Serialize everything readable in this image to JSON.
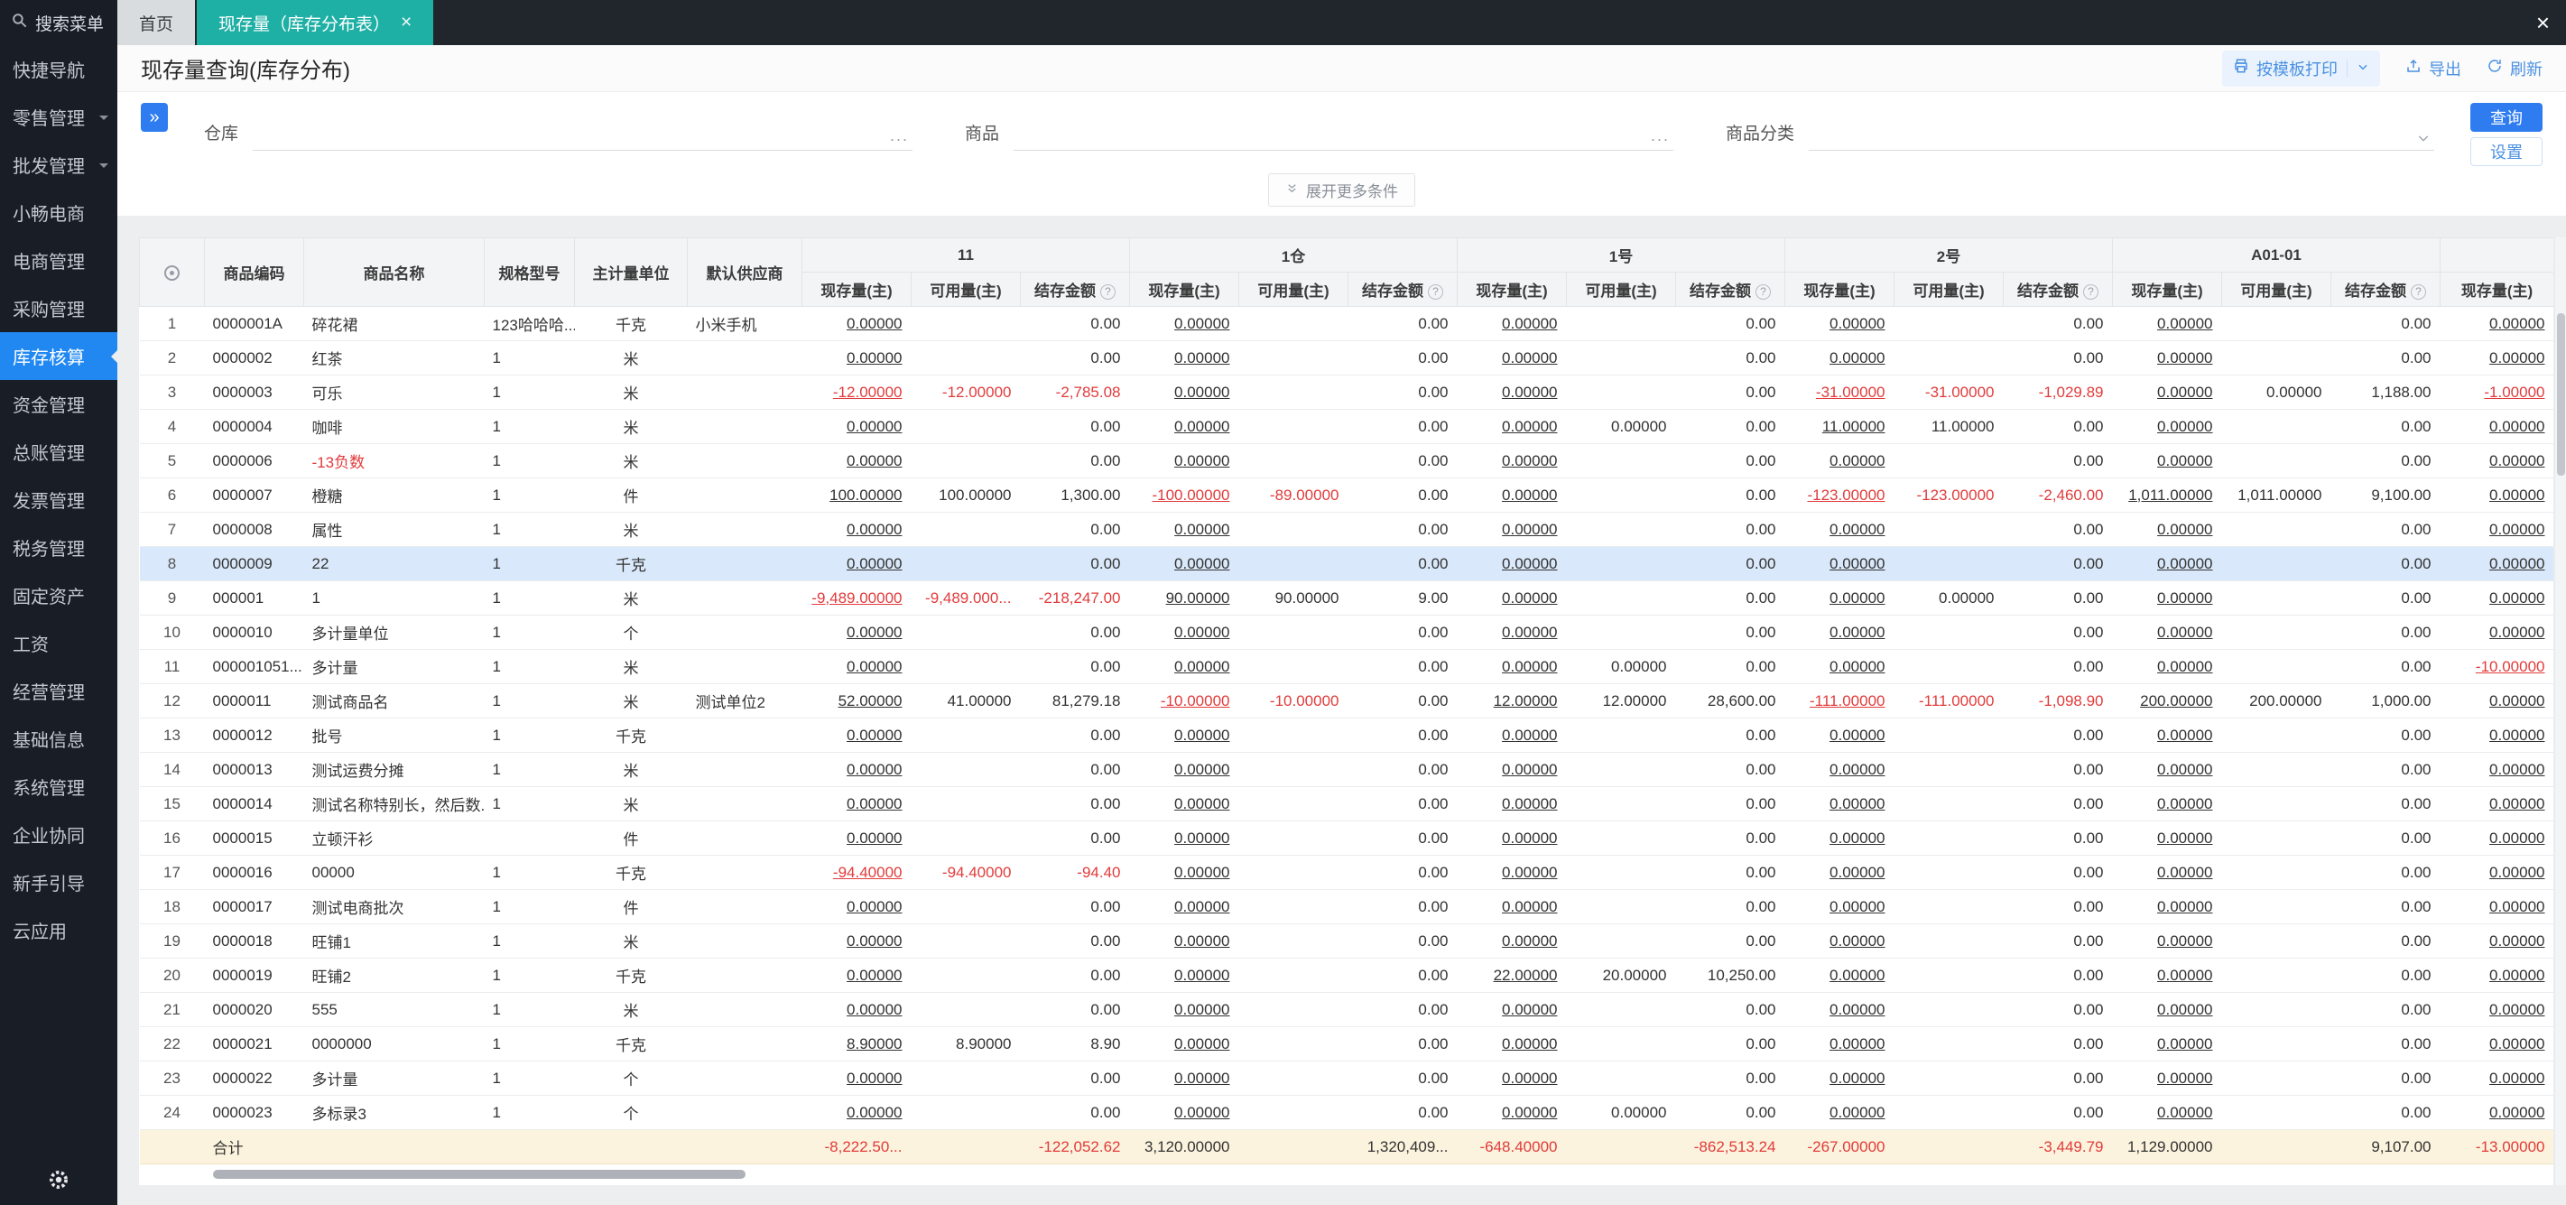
{
  "colors": {
    "sidebar_bg": "#191d26",
    "sidebar_active_blue": "#2188f2",
    "topbar_bg": "#20262c",
    "active_tab_teal": "#1fb0a5",
    "accent_blue": "#2e7cf0",
    "toolbar_link_blue": "#4a90e2",
    "negative_red": "#e23b3b",
    "selected_row_bg": "#d9e8fa",
    "total_row_bg": "#fbf3dd"
  },
  "icons": {
    "sidebar_search": "search-icon",
    "sidebar_expand": "chevron-down-icon",
    "print": "printer-icon",
    "export": "export-icon",
    "refresh": "refresh-icon",
    "table_corner": "target-circle-icon",
    "amount_help": "question-circle-icon",
    "expand_more": "double-chevron-down-icon",
    "gear": "gear-icon",
    "close": "close-icon"
  },
  "sidebar": {
    "search_label": "搜索菜单",
    "items": [
      {
        "label": "快捷导航"
      },
      {
        "label": "零售管理",
        "arrow": true
      },
      {
        "label": "批发管理",
        "arrow": true
      },
      {
        "label": "小畅电商"
      },
      {
        "label": "电商管理"
      },
      {
        "label": "采购管理"
      },
      {
        "label": "库存核算",
        "active": true
      },
      {
        "label": "资金管理"
      },
      {
        "label": "总账管理"
      },
      {
        "label": "发票管理"
      },
      {
        "label": "税务管理"
      },
      {
        "label": "固定资产"
      },
      {
        "label": "工资"
      },
      {
        "label": "经营管理"
      },
      {
        "label": "基础信息"
      },
      {
        "label": "系统管理"
      },
      {
        "label": "企业协同"
      },
      {
        "label": "新手引导"
      },
      {
        "label": "云应用"
      }
    ]
  },
  "topbar": {
    "close_glyph": "×",
    "tabs": [
      {
        "label": "首页",
        "active": false,
        "closable": false
      },
      {
        "label": "现存量（库存分布表）",
        "active": true,
        "closable": true
      }
    ]
  },
  "page": {
    "title": "现存量查询(库存分布)",
    "toolbar": {
      "print": "按模板打印",
      "export": "导出",
      "refresh": "刷新"
    }
  },
  "filters": {
    "expand_button": "»",
    "fields": [
      {
        "label": "仓库",
        "value": "",
        "suffix": "..."
      },
      {
        "label": "商品",
        "value": "",
        "suffix": "..."
      },
      {
        "label": "商品分类",
        "value": "",
        "dropdown": true
      }
    ],
    "query_button": "查询",
    "settings_button": "设置",
    "expand_more": "展开更多条件"
  },
  "table": {
    "help_glyph": "?",
    "fixed_columns": [
      "商品编码",
      "商品名称",
      "规格型号",
      "主计量单位",
      "默认供应商"
    ],
    "warehouse_groups": [
      "11",
      "1仓",
      "1号",
      "2号",
      "A01-01"
    ],
    "sub_columns": [
      "现存量(主)",
      "可用量(主)",
      "结存金额"
    ],
    "overflow_column": "现存量(主)",
    "rows": [
      {
        "num": 1,
        "code": "0000001A",
        "name": "碎花裙",
        "spec": "123哈哈哈...",
        "unit": "千克",
        "supplier": "小米手机",
        "groups": [
          [
            "0.00000",
            "",
            "0.00"
          ],
          [
            "0.00000",
            "",
            "0.00"
          ],
          [
            "0.00000",
            "",
            "0.00"
          ],
          [
            "0.00000",
            "",
            "0.00"
          ],
          [
            "0.00000",
            "",
            "0.00"
          ]
        ],
        "last": "0.00000"
      },
      {
        "num": 2,
        "code": "0000002",
        "name": "红茶",
        "spec": "1",
        "unit": "米",
        "groups": [
          [
            "0.00000",
            "",
            "0.00"
          ],
          [
            "0.00000",
            "",
            "0.00"
          ],
          [
            "0.00000",
            "",
            "0.00"
          ],
          [
            "0.00000",
            "",
            "0.00"
          ],
          [
            "0.00000",
            "",
            "0.00"
          ]
        ],
        "last": "0.00000"
      },
      {
        "num": 3,
        "code": "0000003",
        "name": "可乐",
        "spec": "1",
        "unit": "米",
        "groups": [
          [
            "-12.00000",
            "-12.00000",
            "-2,785.08"
          ],
          [
            "0.00000",
            "",
            "0.00"
          ],
          [
            "0.00000",
            "",
            "0.00"
          ],
          [
            "-31.00000",
            "-31.00000",
            "-1,029.89"
          ],
          [
            "0.00000",
            "0.00000",
            "1,188.00"
          ]
        ],
        "last": "-1.00000"
      },
      {
        "num": 4,
        "code": "0000004",
        "name": "咖啡",
        "spec": "1",
        "unit": "米",
        "groups": [
          [
            "0.00000",
            "",
            "0.00"
          ],
          [
            "0.00000",
            "",
            "0.00"
          ],
          [
            "0.00000",
            "0.00000",
            "0.00"
          ],
          [
            "11.00000",
            "11.00000",
            "0.00"
          ],
          [
            "0.00000",
            "",
            "0.00"
          ]
        ],
        "last": "0.00000"
      },
      {
        "num": 5,
        "code": "0000006",
        "name": "-13负数",
        "name_red": true,
        "spec": "1",
        "unit": "米",
        "groups": [
          [
            "0.00000",
            "",
            "0.00"
          ],
          [
            "0.00000",
            "",
            "0.00"
          ],
          [
            "0.00000",
            "",
            "0.00"
          ],
          [
            "0.00000",
            "",
            "0.00"
          ],
          [
            "0.00000",
            "",
            "0.00"
          ]
        ],
        "last": "0.00000"
      },
      {
        "num": 6,
        "code": "0000007",
        "name": "橙糖",
        "spec": "1",
        "unit": "件",
        "groups": [
          [
            "100.00000",
            "100.00000",
            "1,300.00"
          ],
          [
            "-100.00000",
            "-89.00000",
            "0.00"
          ],
          [
            "0.00000",
            "",
            "0.00"
          ],
          [
            "-123.00000",
            "-123.00000",
            "-2,460.00"
          ],
          [
            "1,011.00000",
            "1,011.00000",
            "9,100.00"
          ]
        ],
        "last": "0.00000"
      },
      {
        "num": 7,
        "code": "0000008",
        "name": "属性",
        "spec": "1",
        "unit": "米",
        "groups": [
          [
            "0.00000",
            "",
            "0.00"
          ],
          [
            "0.00000",
            "",
            "0.00"
          ],
          [
            "0.00000",
            "",
            "0.00"
          ],
          [
            "0.00000",
            "",
            "0.00"
          ],
          [
            "0.00000",
            "",
            "0.00"
          ]
        ],
        "last": "0.00000"
      },
      {
        "num": 8,
        "code": "0000009",
        "name": "22",
        "spec": "1",
        "unit": "千克",
        "selected": true,
        "groups": [
          [
            "0.00000",
            "",
            "0.00"
          ],
          [
            "0.00000",
            "",
            "0.00"
          ],
          [
            "0.00000",
            "",
            "0.00"
          ],
          [
            "0.00000",
            "",
            "0.00"
          ],
          [
            "0.00000",
            "",
            "0.00"
          ]
        ],
        "last": "0.00000"
      },
      {
        "num": 9,
        "code": "000001",
        "name": "1",
        "spec": "1",
        "unit": "米",
        "groups": [
          [
            "-9,489.00000",
            "-9,489.000...",
            "-218,247.00"
          ],
          [
            "90.00000",
            "90.00000",
            "9.00"
          ],
          [
            "0.00000",
            "",
            "0.00"
          ],
          [
            "0.00000",
            "0.00000",
            "0.00"
          ],
          [
            "0.00000",
            "",
            "0.00"
          ]
        ],
        "last": "0.00000"
      },
      {
        "num": 10,
        "code": "0000010",
        "name": "多计量单位",
        "spec": "1",
        "unit": "个",
        "groups": [
          [
            "0.00000",
            "",
            "0.00"
          ],
          [
            "0.00000",
            "",
            "0.00"
          ],
          [
            "0.00000",
            "",
            "0.00"
          ],
          [
            "0.00000",
            "",
            "0.00"
          ],
          [
            "0.00000",
            "",
            "0.00"
          ]
        ],
        "last": "0.00000"
      },
      {
        "num": 11,
        "code": "000001051...",
        "name": "多计量",
        "spec": "1",
        "unit": "米",
        "groups": [
          [
            "0.00000",
            "",
            "0.00"
          ],
          [
            "0.00000",
            "",
            "0.00"
          ],
          [
            "0.00000",
            "0.00000",
            "0.00"
          ],
          [
            "0.00000",
            "",
            "0.00"
          ],
          [
            "0.00000",
            "",
            "0.00"
          ]
        ],
        "last": "-10.00000"
      },
      {
        "num": 12,
        "code": "0000011",
        "name": "测试商品名",
        "spec": "1",
        "unit": "米",
        "supplier": "测试单位2",
        "groups": [
          [
            "52.00000",
            "41.00000",
            "81,279.18"
          ],
          [
            "-10.00000",
            "-10.00000",
            "0.00"
          ],
          [
            "12.00000",
            "12.00000",
            "28,600.00"
          ],
          [
            "-111.00000",
            "-111.00000",
            "-1,098.90"
          ],
          [
            "200.00000",
            "200.00000",
            "1,000.00"
          ]
        ],
        "last": "0.00000"
      },
      {
        "num": 13,
        "code": "0000012",
        "name": "批号",
        "spec": "1",
        "unit": "千克",
        "groups": [
          [
            "0.00000",
            "",
            "0.00"
          ],
          [
            "0.00000",
            "",
            "0.00"
          ],
          [
            "0.00000",
            "",
            "0.00"
          ],
          [
            "0.00000",
            "",
            "0.00"
          ],
          [
            "0.00000",
            "",
            "0.00"
          ]
        ],
        "last": "0.00000"
      },
      {
        "num": 14,
        "code": "0000013",
        "name": "测试运费分摊",
        "spec": "1",
        "unit": "米",
        "groups": [
          [
            "0.00000",
            "",
            "0.00"
          ],
          [
            "0.00000",
            "",
            "0.00"
          ],
          [
            "0.00000",
            "",
            "0.00"
          ],
          [
            "0.00000",
            "",
            "0.00"
          ],
          [
            "0.00000",
            "",
            "0.00"
          ]
        ],
        "last": "0.00000"
      },
      {
        "num": 15,
        "code": "0000014",
        "name": "测试名称特别长，然后数...",
        "spec": "1",
        "unit": "米",
        "groups": [
          [
            "0.00000",
            "",
            "0.00"
          ],
          [
            "0.00000",
            "",
            "0.00"
          ],
          [
            "0.00000",
            "",
            "0.00"
          ],
          [
            "0.00000",
            "",
            "0.00"
          ],
          [
            "0.00000",
            "",
            "0.00"
          ]
        ],
        "last": "0.00000"
      },
      {
        "num": 16,
        "code": "0000015",
        "name": "立顿汗衫",
        "spec": "",
        "unit": "件",
        "groups": [
          [
            "0.00000",
            "",
            "0.00"
          ],
          [
            "0.00000",
            "",
            "0.00"
          ],
          [
            "0.00000",
            "",
            "0.00"
          ],
          [
            "0.00000",
            "",
            "0.00"
          ],
          [
            "0.00000",
            "",
            "0.00"
          ]
        ],
        "last": "0.00000"
      },
      {
        "num": 17,
        "code": "0000016",
        "name": "00000",
        "spec": "1",
        "unit": "千克",
        "groups": [
          [
            "-94.40000",
            "-94.40000",
            "-94.40"
          ],
          [
            "0.00000",
            "",
            "0.00"
          ],
          [
            "0.00000",
            "",
            "0.00"
          ],
          [
            "0.00000",
            "",
            "0.00"
          ],
          [
            "0.00000",
            "",
            "0.00"
          ]
        ],
        "last": "0.00000"
      },
      {
        "num": 18,
        "code": "0000017",
        "name": "测试电商批次",
        "spec": "1",
        "unit": "件",
        "groups": [
          [
            "0.00000",
            "",
            "0.00"
          ],
          [
            "0.00000",
            "",
            "0.00"
          ],
          [
            "0.00000",
            "",
            "0.00"
          ],
          [
            "0.00000",
            "",
            "0.00"
          ],
          [
            "0.00000",
            "",
            "0.00"
          ]
        ],
        "last": "0.00000"
      },
      {
        "num": 19,
        "code": "0000018",
        "name": "旺铺1",
        "spec": "1",
        "unit": "米",
        "groups": [
          [
            "0.00000",
            "",
            "0.00"
          ],
          [
            "0.00000",
            "",
            "0.00"
          ],
          [
            "0.00000",
            "",
            "0.00"
          ],
          [
            "0.00000",
            "",
            "0.00"
          ],
          [
            "0.00000",
            "",
            "0.00"
          ]
        ],
        "last": "0.00000"
      },
      {
        "num": 20,
        "code": "0000019",
        "name": "旺铺2",
        "spec": "1",
        "unit": "千克",
        "groups": [
          [
            "0.00000",
            "",
            "0.00"
          ],
          [
            "0.00000",
            "",
            "0.00"
          ],
          [
            "22.00000",
            "20.00000",
            "10,250.00"
          ],
          [
            "0.00000",
            "",
            "0.00"
          ],
          [
            "0.00000",
            "",
            "0.00"
          ]
        ],
        "last": "0.00000"
      },
      {
        "num": 21,
        "code": "0000020",
        "name": "555",
        "spec": "1",
        "unit": "米",
        "groups": [
          [
            "0.00000",
            "",
            "0.00"
          ],
          [
            "0.00000",
            "",
            "0.00"
          ],
          [
            "0.00000",
            "",
            "0.00"
          ],
          [
            "0.00000",
            "",
            "0.00"
          ],
          [
            "0.00000",
            "",
            "0.00"
          ]
        ],
        "last": "0.00000"
      },
      {
        "num": 22,
        "code": "0000021",
        "name": "0000000",
        "spec": "1",
        "unit": "千克",
        "groups": [
          [
            "8.90000",
            "8.90000",
            "8.90"
          ],
          [
            "0.00000",
            "",
            "0.00"
          ],
          [
            "0.00000",
            "",
            "0.00"
          ],
          [
            "0.00000",
            "",
            "0.00"
          ],
          [
            "0.00000",
            "",
            "0.00"
          ]
        ],
        "last": "0.00000"
      },
      {
        "num": 23,
        "code": "0000022",
        "name": "多计量",
        "spec": "1",
        "unit": "个",
        "groups": [
          [
            "0.00000",
            "",
            "0.00"
          ],
          [
            "0.00000",
            "",
            "0.00"
          ],
          [
            "0.00000",
            "",
            "0.00"
          ],
          [
            "0.00000",
            "",
            "0.00"
          ],
          [
            "0.00000",
            "",
            "0.00"
          ]
        ],
        "last": "0.00000"
      },
      {
        "num": 24,
        "code": "0000023",
        "name": "多标录3",
        "spec": "1",
        "unit": "个",
        "groups": [
          [
            "0.00000",
            "",
            "0.00"
          ],
          [
            "0.00000",
            "",
            "0.00"
          ],
          [
            "0.00000",
            "0.00000",
            "0.00"
          ],
          [
            "0.00000",
            "",
            "0.00"
          ],
          [
            "0.00000",
            "",
            "0.00"
          ]
        ],
        "last": "0.00000"
      }
    ],
    "total": {
      "label": "合计",
      "groups": [
        [
          "-8,222.50...",
          "",
          "-122,052.62"
        ],
        [
          "3,120.00000",
          "",
          "1,320,409..."
        ],
        [
          "-648.40000",
          "",
          "-862,513.24"
        ],
        [
          "-267.00000",
          "",
          "-3,449.79"
        ],
        [
          "1,129.00000",
          "",
          "9,107.00"
        ]
      ],
      "last": "-13.00000"
    }
  }
}
